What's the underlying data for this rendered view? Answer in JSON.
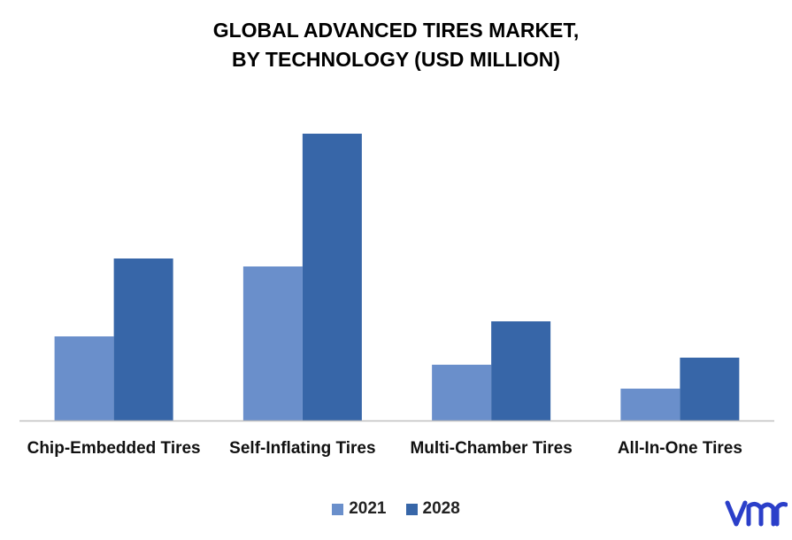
{
  "chart_data": {
    "type": "bar",
    "title_lines": [
      "GLOBAL ADVANCED TIRES MARKET,",
      "BY TECHNOLOGY (USD MILLION)"
    ],
    "categories": [
      "Chip-Embedded Tires",
      "Self-Inflating Tires",
      "Multi-Chamber Tires",
      "All-In-One Tires"
    ],
    "series": [
      {
        "name": "2021",
        "values": [
          95,
          174,
          63,
          36
        ],
        "color": "#6A8FCB"
      },
      {
        "name": "2028",
        "values": [
          183,
          324,
          112,
          71
        ],
        "color": "#3766A8"
      }
    ],
    "ylim": [
      0,
      340
    ],
    "grid": false,
    "axis_color": "#BFBFBF",
    "legend_position": "bottom"
  },
  "logo": {
    "name": "vmr-logo",
    "color": "#2B3FC9"
  }
}
